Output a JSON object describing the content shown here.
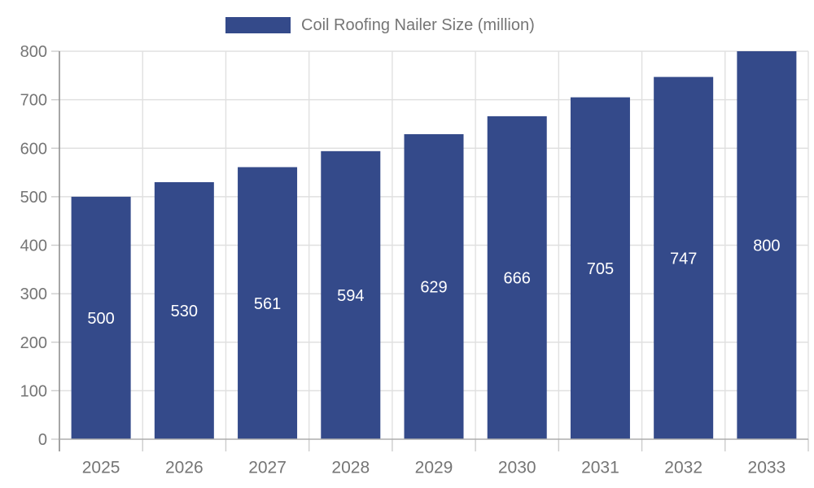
{
  "legend": {
    "label": "Coil Roofing Nailer Size (million)"
  },
  "chart_data": {
    "type": "bar",
    "title": "Coil Roofing Nailer Size (million)",
    "series_name": "Coil Roofing Nailer Size (million)",
    "categories": [
      "2025",
      "2026",
      "2027",
      "2028",
      "2029",
      "2030",
      "2031",
      "2032",
      "2033"
    ],
    "values": [
      500,
      530,
      561,
      594,
      629,
      666,
      705,
      747,
      800
    ],
    "value_labels": [
      "500",
      "530",
      "561",
      "594",
      "629",
      "666",
      "705",
      "747",
      "800"
    ],
    "xlabel": "",
    "ylabel": "",
    "ylim": [
      0,
      800
    ],
    "ytick_step": 100,
    "ytick_labels": [
      "0",
      "100",
      "200",
      "300",
      "400",
      "500",
      "600",
      "700",
      "800"
    ],
    "grid": true,
    "legend_position": "top-center",
    "colors": {
      "bar": "#344A8A",
      "value_label": "#FFFFFF",
      "axis_text": "#757575",
      "gridline": "#E0E0E0",
      "tick": "#CCCCCC",
      "y_spine": "#8F8F8F",
      "x_spine": "#ADADAD",
      "background": "#FFFFFF"
    }
  }
}
